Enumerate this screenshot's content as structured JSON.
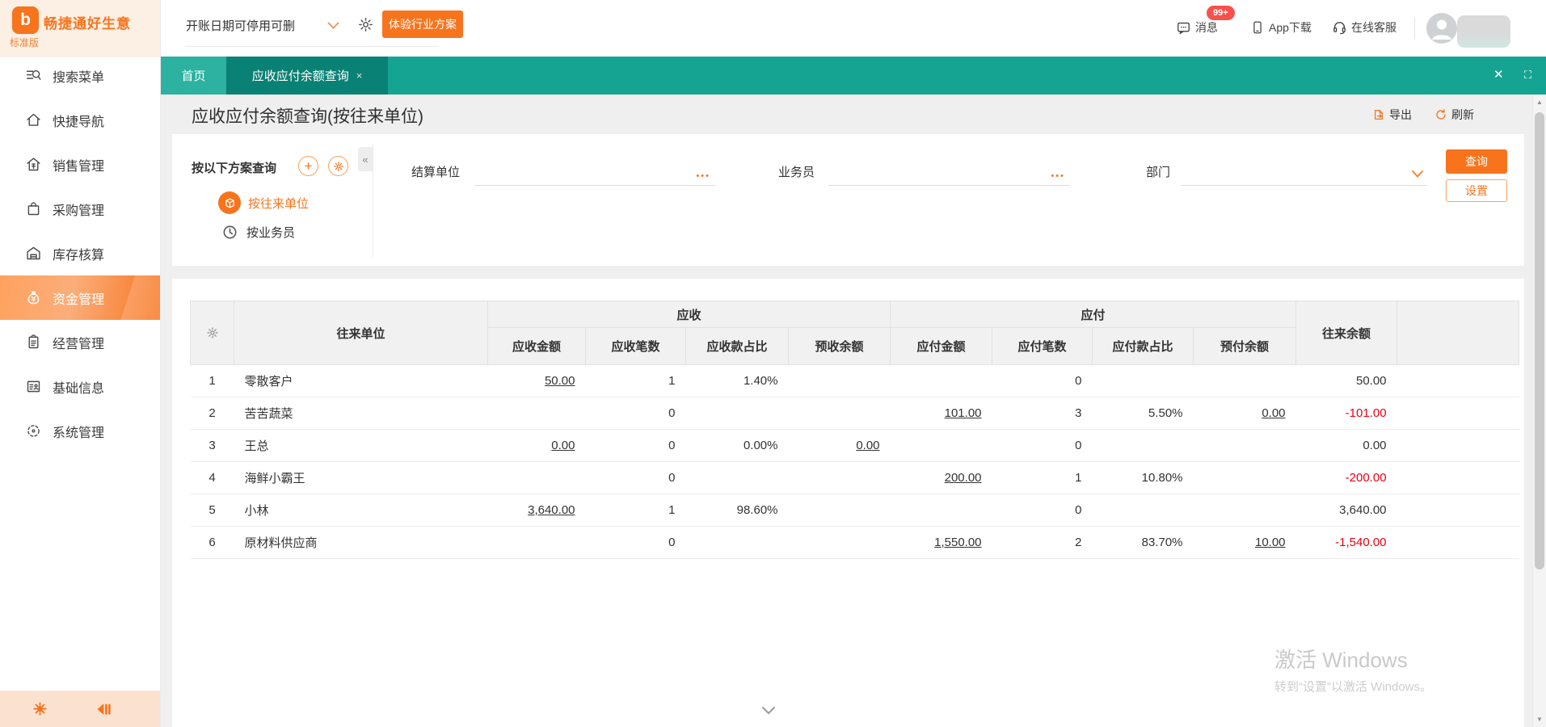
{
  "brand": {
    "name": "畅捷通好生意",
    "edition": "标准版",
    "logo_letter": "b"
  },
  "topbar": {
    "account_set": "开账日期可停用可删",
    "trial_button": "体验行业方案",
    "messages": "消息",
    "messages_badge": "99+",
    "app_download": "App下载",
    "online_service": "在线客服"
  },
  "tabs": {
    "home": "首页",
    "active": "应收应付余额查询",
    "close": "×"
  },
  "page": {
    "title": "应收应付余额查询(按往来单位)",
    "export_label": "导出",
    "refresh_label": "刷新"
  },
  "sidebar": {
    "items": [
      {
        "label": "搜索菜单",
        "icon": "search-menu-icon",
        "selected": false
      },
      {
        "label": "快捷导航",
        "icon": "home-icon",
        "selected": false
      },
      {
        "label": "销售管理",
        "icon": "sales-house-icon",
        "selected": false
      },
      {
        "label": "采购管理",
        "icon": "purchase-bag-icon",
        "selected": false
      },
      {
        "label": "库存核算",
        "icon": "warehouse-icon",
        "selected": false
      },
      {
        "label": "资金管理",
        "icon": "money-bag-icon",
        "selected": true
      },
      {
        "label": "经营管理",
        "icon": "clipboard-icon",
        "selected": false
      },
      {
        "label": "基础信息",
        "icon": "id-card-icon",
        "selected": false
      },
      {
        "label": "系统管理",
        "icon": "system-icon",
        "selected": false
      }
    ]
  },
  "query": {
    "panel_title": "按以下方案查询",
    "schemes": [
      {
        "label": "按往来单位",
        "icon": "cube-icon",
        "selected": true
      },
      {
        "label": "按业务员",
        "icon": "clock-icon",
        "selected": false
      }
    ],
    "filters": {
      "settle_unit": "结算单位",
      "salesman": "业务员",
      "department": "部门"
    },
    "picker_dots": "•••",
    "query_button": "查询",
    "settings_button": "设置"
  },
  "table": {
    "group_receivable": "应收",
    "group_payable": "应付",
    "col_partner": "往来单位",
    "col_balance": "往来余额",
    "sub_columns": [
      "应收金额",
      "应收笔数",
      "应收款占比",
      "预收余额",
      "应付金额",
      "应付笔数",
      "应付款占比",
      "预付余额"
    ],
    "rows": [
      {
        "num": "1",
        "name": "零散客户",
        "cells": [
          {
            "v": "50.00",
            "link": true
          },
          {
            "v": "1"
          },
          {
            "v": "1.40%"
          },
          {
            "v": ""
          },
          {
            "v": ""
          },
          {
            "v": "0"
          },
          {
            "v": ""
          },
          {
            "v": ""
          },
          {
            "v": "50.00"
          }
        ]
      },
      {
        "num": "2",
        "name": "苦苦蔬菜",
        "cells": [
          {
            "v": ""
          },
          {
            "v": "0"
          },
          {
            "v": ""
          },
          {
            "v": ""
          },
          {
            "v": "101.00",
            "link": true
          },
          {
            "v": "3"
          },
          {
            "v": "5.50%"
          },
          {
            "v": "0.00",
            "link": true
          },
          {
            "v": "-101.00",
            "neg": true
          }
        ]
      },
      {
        "num": "3",
        "name": "王总",
        "cells": [
          {
            "v": "0.00",
            "link": true
          },
          {
            "v": "0"
          },
          {
            "v": "0.00%"
          },
          {
            "v": "0.00",
            "link": true
          },
          {
            "v": ""
          },
          {
            "v": "0"
          },
          {
            "v": ""
          },
          {
            "v": ""
          },
          {
            "v": "0.00"
          }
        ]
      },
      {
        "num": "4",
        "name": "海鲜小霸王",
        "cells": [
          {
            "v": ""
          },
          {
            "v": "0"
          },
          {
            "v": ""
          },
          {
            "v": ""
          },
          {
            "v": "200.00",
            "link": true
          },
          {
            "v": "1"
          },
          {
            "v": "10.80%"
          },
          {
            "v": ""
          },
          {
            "v": "-200.00",
            "neg": true
          }
        ]
      },
      {
        "num": "5",
        "name": "小林",
        "cells": [
          {
            "v": "3,640.00",
            "link": true
          },
          {
            "v": "1"
          },
          {
            "v": "98.60%"
          },
          {
            "v": ""
          },
          {
            "v": ""
          },
          {
            "v": "0"
          },
          {
            "v": ""
          },
          {
            "v": ""
          },
          {
            "v": "3,640.00"
          }
        ]
      },
      {
        "num": "6",
        "name": "原材料供应商",
        "cells": [
          {
            "v": ""
          },
          {
            "v": "0"
          },
          {
            "v": ""
          },
          {
            "v": ""
          },
          {
            "v": "1,550.00",
            "link": true
          },
          {
            "v": "2"
          },
          {
            "v": "83.70%"
          },
          {
            "v": "10.00",
            "link": true
          },
          {
            "v": "-1,540.00",
            "neg": true
          }
        ]
      }
    ]
  },
  "watermark": {
    "line1": "激活 Windows",
    "line2": "转到“设置”以激活 Windows。"
  },
  "colors": {
    "primary": "#f7741d",
    "teal": "#16a492",
    "teal_active_tab": "#0a8175",
    "negative": "#e60012",
    "badge": "#f85149"
  }
}
